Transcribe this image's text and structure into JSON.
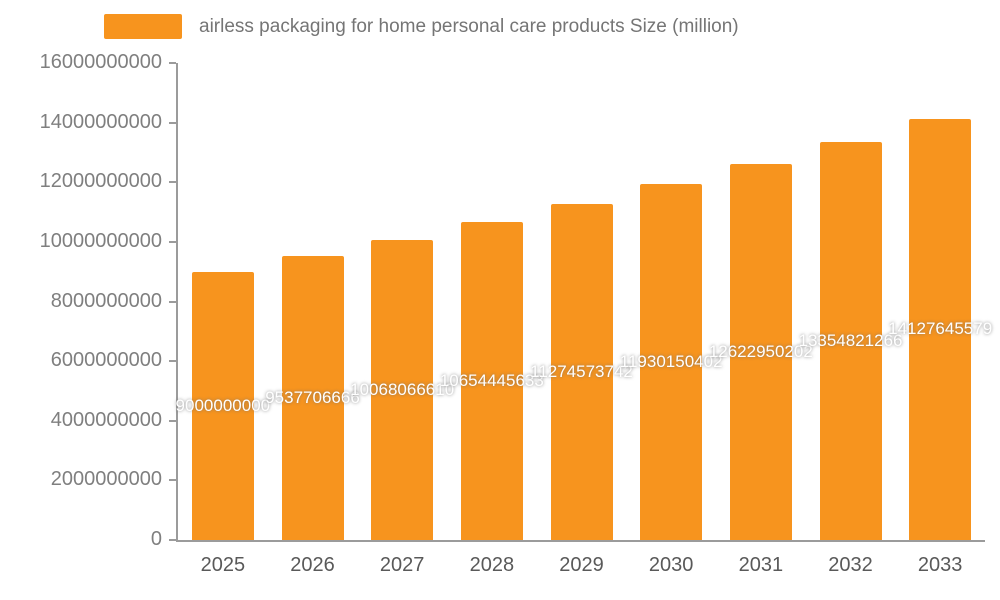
{
  "colors": {
    "bar": "#F7941E",
    "axis": "#9B9B9B",
    "ytick_text": "#7F7F7F",
    "xtick_text": "#595959",
    "value_label": "#FFFFFF",
    "legend_text": "#757575",
    "background": "#FFFFFF"
  },
  "legend": {
    "label": "airless packaging for home personal care products Size (million)"
  },
  "chart_data": {
    "type": "bar",
    "title": "airless packaging for home personal care products Size (million)",
    "xlabel": "",
    "ylabel": "",
    "categories": [
      "2025",
      "2026",
      "2027",
      "2028",
      "2029",
      "2030",
      "2031",
      "2032",
      "2033"
    ],
    "values": [
      9000000000,
      9537706666,
      10068066610,
      10654445633,
      11274573742,
      11930150402,
      12622950202,
      13354821266,
      14127645579
    ],
    "ylim": [
      0,
      16000000000
    ],
    "yticks": [
      0,
      2000000000,
      4000000000,
      6000000000,
      8000000000,
      10000000000,
      12000000000,
      14000000000,
      16000000000
    ],
    "grid": false,
    "legend_position": "top-left",
    "data_labels": "inside-middle-white"
  }
}
